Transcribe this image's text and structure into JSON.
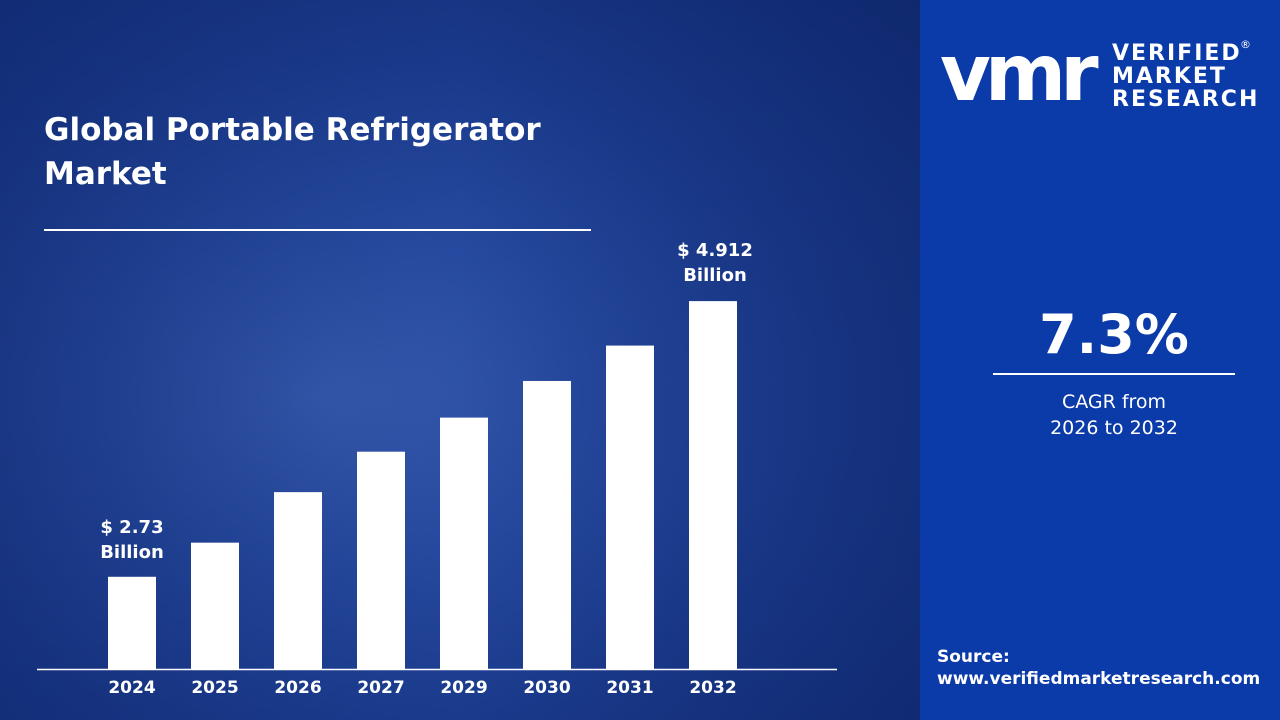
{
  "brand": {
    "logo_mark": "vmr",
    "name_lines": [
      "VERIFIED",
      "MARKET",
      "RESEARCH"
    ],
    "registered": "®"
  },
  "cagr": {
    "value": "7.3%",
    "label_line1": "CAGR from",
    "label_line2": "2026 to 2032"
  },
  "source": {
    "label": "Source:",
    "url": "www.verifiedmarketresearch.com"
  },
  "colors": {
    "panel": "#0b3aa9",
    "bars": "#ffffff",
    "background": "#1b3b8d"
  },
  "chart_data": {
    "type": "bar",
    "title": "Global Portable Refrigerator Market",
    "categories": [
      "2024",
      "2025",
      "2026",
      "2027",
      "2029",
      "2030",
      "2031",
      "2032"
    ],
    "values": [
      2.73,
      3.0,
      3.4,
      3.72,
      3.99,
      4.28,
      4.56,
      4.912
    ],
    "unit": "USD Billion",
    "ylim": [
      2.0,
      5.0
    ],
    "grid": false,
    "annotations": [
      {
        "category": "2024",
        "line1": "$ 2.73",
        "line2": "Billion"
      },
      {
        "category": "2032",
        "line1": "$ 4.912",
        "line2": "Billion"
      }
    ]
  }
}
